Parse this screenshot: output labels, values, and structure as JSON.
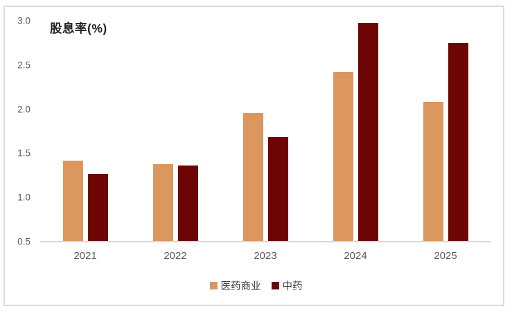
{
  "chart_data": {
    "type": "bar",
    "title": "股息率(%)",
    "categories": [
      "2021",
      "2022",
      "2023",
      "2024",
      "2025"
    ],
    "series": [
      {
        "name": "医药商业",
        "color": "#DC975F",
        "values": [
          1.42,
          1.38,
          1.96,
          2.42,
          2.08
        ]
      },
      {
        "name": "中药",
        "color": "#6E0505",
        "values": [
          1.27,
          1.36,
          1.68,
          2.98,
          2.75
        ]
      }
    ],
    "ylabel": "",
    "xlabel": "",
    "ylim": [
      0.5,
      3.0
    ],
    "yticks": [
      0.5,
      1.0,
      1.5,
      2.0,
      2.5,
      3.0
    ],
    "ytick_decimals": 1,
    "grid": false,
    "legend_position": "bottom",
    "axis_color": "#D9D9D9",
    "tick_label_color": "#595959",
    "legend_text_color": "#3F3F3F",
    "title_color": "#222222",
    "background_color": "#ffffff",
    "border_color": "#DBDBDB"
  }
}
